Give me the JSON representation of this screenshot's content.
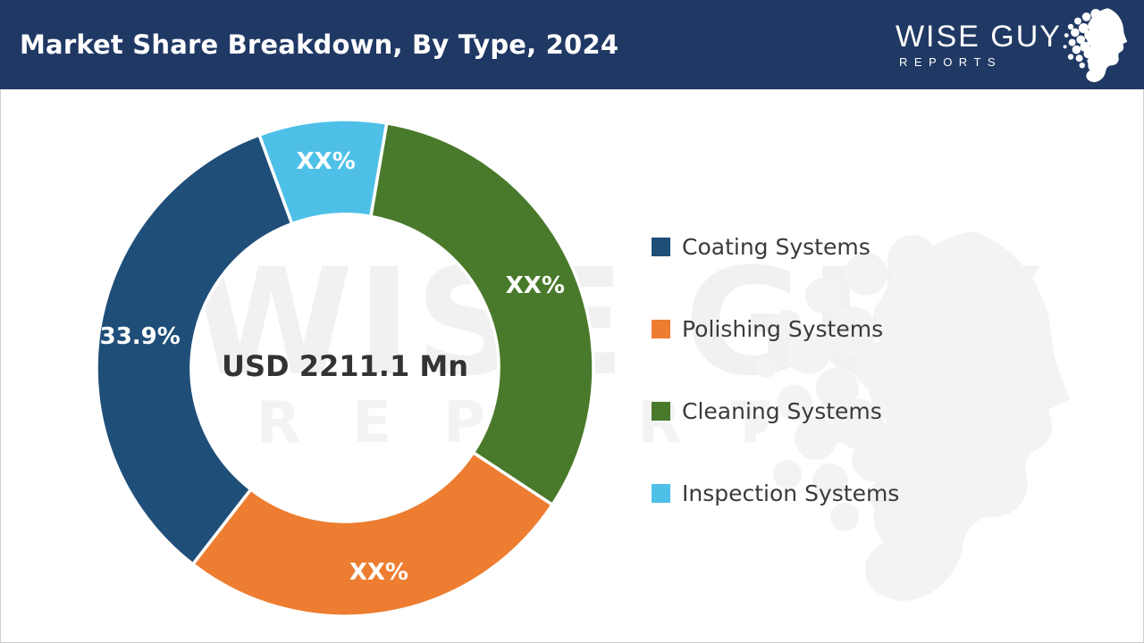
{
  "header": {
    "title": "Market Share Breakdown, By Type, 2024",
    "bg_color": "#203864",
    "logo": {
      "line1": "WISE GUY",
      "line2": "REPORTS"
    }
  },
  "watermark": {
    "line1": "WISE GUY",
    "line2": "REPORTS"
  },
  "chart_data": {
    "type": "pie",
    "variant": "donut",
    "title": "Market Share Breakdown, By Type, 2024",
    "center_label": "USD 2211.1 Mn",
    "start_angle_deg": -20.2,
    "legend_position": "right",
    "gap_color": "#ffffff",
    "segments": [
      {
        "name": "Inspection Systems",
        "value": 8.3,
        "display_label": "XX%",
        "color": "#4ec0e8"
      },
      {
        "name": "Cleaning Systems",
        "value": 31.6,
        "display_label": "XX%",
        "color": "#49792b"
      },
      {
        "name": "Polishing Systems",
        "value": 26.2,
        "display_label": "XX%",
        "color": "#ed7d31"
      },
      {
        "name": "Coating Systems",
        "value": 33.9,
        "display_label": "33.9%",
        "color": "#1f4e79"
      }
    ]
  },
  "legend": {
    "items": [
      {
        "label": "Coating Systems",
        "color": "#1f4e79"
      },
      {
        "label": "Polishing Systems",
        "color": "#ed7d31"
      },
      {
        "label": "Cleaning Systems",
        "color": "#49792b"
      },
      {
        "label": "Inspection Systems",
        "color": "#4ec0e8"
      }
    ]
  }
}
